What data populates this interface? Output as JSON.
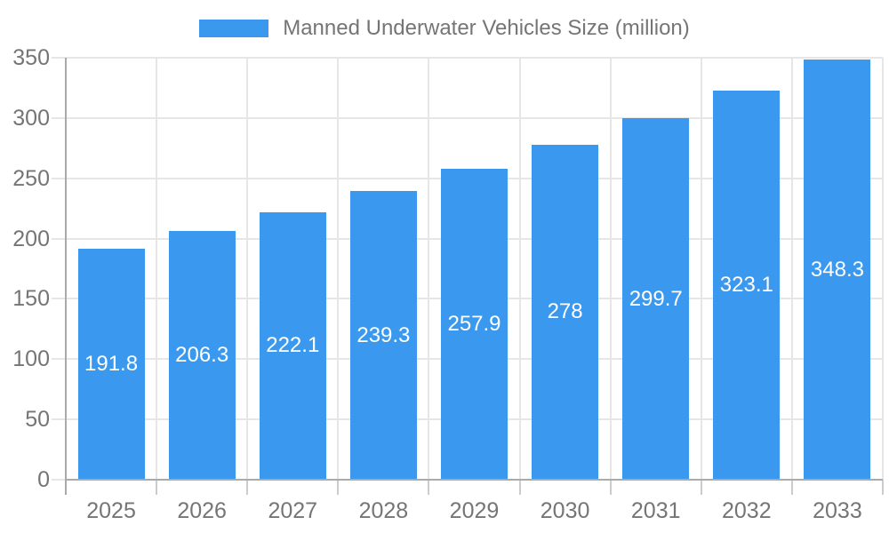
{
  "chart_data": {
    "type": "bar",
    "title": "Manned Underwater Vehicles Size (million)",
    "categories": [
      "2025",
      "2026",
      "2027",
      "2028",
      "2029",
      "2030",
      "2031",
      "2032",
      "2033"
    ],
    "series": [
      {
        "name": "Manned Underwater Vehicles Size (million)",
        "values": [
          191.8,
          206.3,
          222.1,
          239.3,
          257.9,
          278,
          299.7,
          323.1,
          348.3
        ]
      }
    ],
    "value_labels": [
      "191.8",
      "206.3",
      "222.1",
      "239.3",
      "257.9",
      "278",
      "299.7",
      "323.1",
      "348.3"
    ],
    "xlabel": "",
    "ylabel": "",
    "ylim": [
      0,
      350
    ],
    "ytick_step": 50,
    "yticks": [
      "0",
      "50",
      "100",
      "150",
      "200",
      "250",
      "300",
      "350"
    ],
    "grid": true,
    "legend_position": "top",
    "colors": {
      "bar": "#3a99ee",
      "grid": "#e6e6e6",
      "axis": "#aaaaaa",
      "subtick": "#cccccc",
      "axis_text": "#757575",
      "value_text": "#ffffff",
      "background": "#ffffff"
    }
  }
}
